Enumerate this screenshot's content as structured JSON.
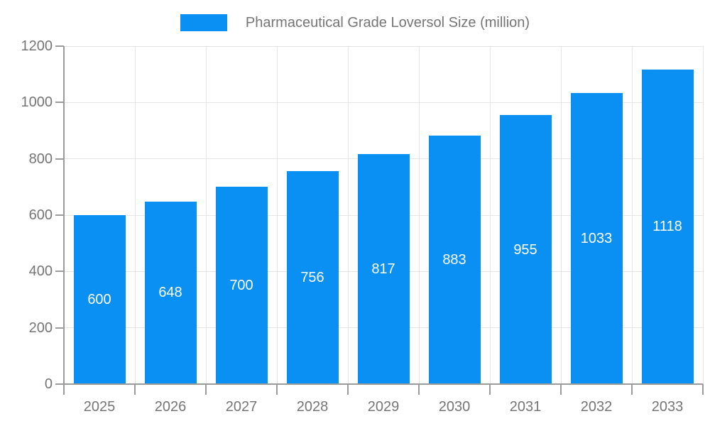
{
  "chart_data": {
    "type": "bar",
    "title": "Pharmaceutical Grade Loversol Size (million)",
    "categories": [
      "2025",
      "2026",
      "2027",
      "2028",
      "2029",
      "2030",
      "2031",
      "2032",
      "2033"
    ],
    "values": [
      600,
      648,
      700,
      756,
      817,
      883,
      955,
      1033,
      1118
    ],
    "xlabel": "",
    "ylabel": "",
    "ylim": [
      0,
      1200
    ],
    "ytick_step": 200,
    "grid": true,
    "legend_position": "top",
    "value_labels": "inside-center",
    "colors": {
      "bar": "#0a90f2",
      "value_label": "#ffffff",
      "axis": "#9b9b9b",
      "grid": "#e6e6e6",
      "text": "#757575",
      "background": "#ffffff"
    }
  }
}
